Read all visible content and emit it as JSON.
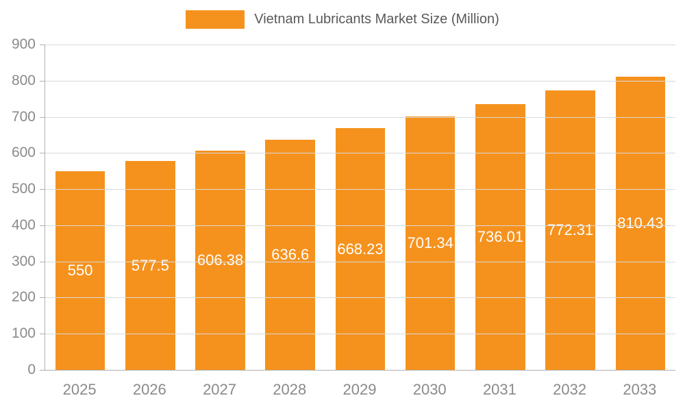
{
  "chart_data": {
    "type": "bar",
    "title": "Vietnam Lubricants Market Size (Million)",
    "categories": [
      "2025",
      "2026",
      "2027",
      "2028",
      "2029",
      "2030",
      "2031",
      "2032",
      "2033"
    ],
    "values": [
      550,
      577.5,
      606.38,
      636.6,
      668.23,
      701.34,
      736.01,
      772.31,
      810.43
    ],
    "value_labels": [
      "550",
      "577.5",
      "606.38",
      "636.6",
      "668.23",
      "701.34",
      "736.01",
      "772.31",
      "810.43"
    ],
    "ylim": [
      0,
      900
    ],
    "ytick_step": 100,
    "ytick_labels": [
      "0",
      "100",
      "200",
      "300",
      "400",
      "500",
      "600",
      "700",
      "800",
      "900"
    ],
    "grid": true,
    "legend_position": "top",
    "bar_color": "#F5921E",
    "value_label_color": "#ffffff",
    "axis_text_color": "#8a8a8a",
    "grid_color": "#d9d9d9",
    "title_color": "#595959"
  }
}
